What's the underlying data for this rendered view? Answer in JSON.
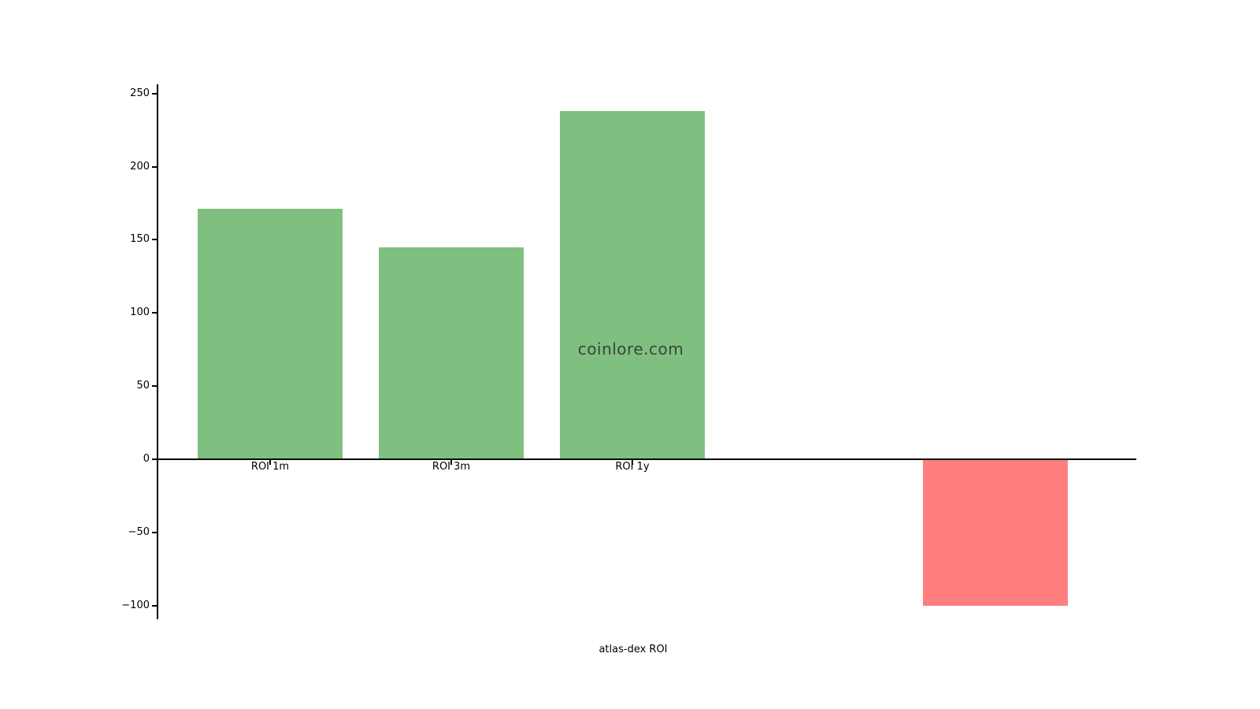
{
  "chart_data": {
    "type": "bar",
    "xlabel": "atlas-dex ROI",
    "watermark": "coinlore.com",
    "categories": [
      "ROI 1m",
      "ROI 3m",
      "ROI 1y",
      ""
    ],
    "values": [
      171,
      145,
      238,
      -100
    ],
    "bar_colors": [
      "#7fbf7f",
      "#7fbf7f",
      "#7fbf7f",
      "#ff7f7f"
    ],
    "positive_color": "#7fbf7f",
    "negative_color": "#ff7f7f",
    "yticks": [
      250,
      200,
      150,
      100,
      50,
      0,
      -50,
      -100
    ],
    "ylim": [
      -109,
      256
    ],
    "grid": false,
    "axis_color": "#000000",
    "tick_label_color": "#000000",
    "watermark_color": "#3a453a",
    "background": "#ffffff"
  }
}
